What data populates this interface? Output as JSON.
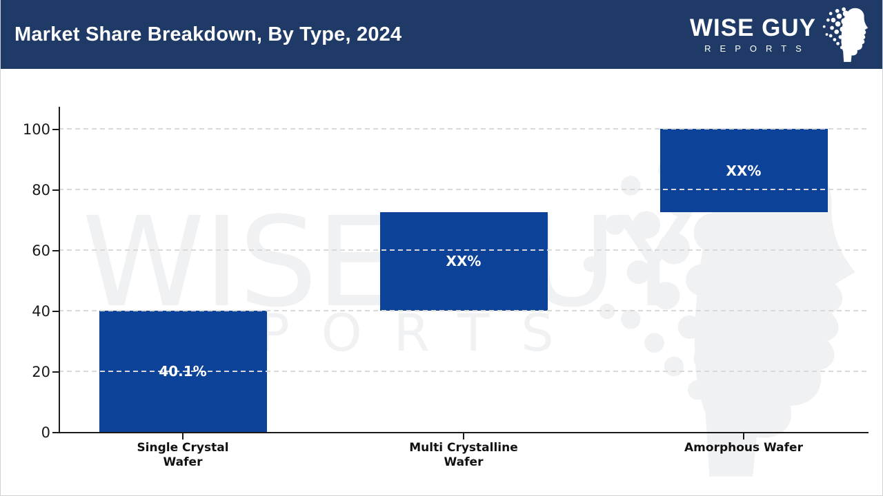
{
  "header": {
    "title": "Market Share Breakdown, By Type, 2024",
    "logo": {
      "line1": "WISE GUY",
      "line2": "REPORTS"
    }
  },
  "watermark": {
    "line1": "WISE GUY",
    "line2": "REPORTS"
  },
  "chart_data": {
    "type": "bar",
    "subtype": "floating-segment-waterfall",
    "title": "Market Share Breakdown, By Type, 2024",
    "categories": [
      "Single Crystal Wafer",
      "Multi Crystalline Wafer",
      "Amorphous Wafer"
    ],
    "category_label_lines": [
      [
        "Single Crystal",
        "Wafer"
      ],
      [
        "Multi Crystalline",
        "Wafer"
      ],
      [
        "Amorphous Wafer"
      ]
    ],
    "series": [
      {
        "name": "Single Crystal Wafer",
        "start": 0,
        "end": 40.1,
        "value_label": "40.1%"
      },
      {
        "name": "Multi Crystalline Wafer",
        "start": 40.1,
        "end": 72.5,
        "value_label": "XX%"
      },
      {
        "name": "Amorphous Wafer",
        "start": 72.5,
        "end": 100,
        "value_label": "XX%"
      }
    ],
    "xlabel": "",
    "ylabel": "",
    "ylim": [
      0,
      100
    ],
    "yticks": [
      0,
      20,
      40,
      60,
      80,
      100
    ],
    "grid": "horizontal-dashed",
    "legend": "none",
    "colors": {
      "bar": "#0d4299",
      "bar_label": "#ffffff",
      "grid": "#d9d9d9",
      "axis": "#1a1a1a",
      "header_bg": "#1f3a67",
      "watermark": "#f0f1f3"
    }
  }
}
